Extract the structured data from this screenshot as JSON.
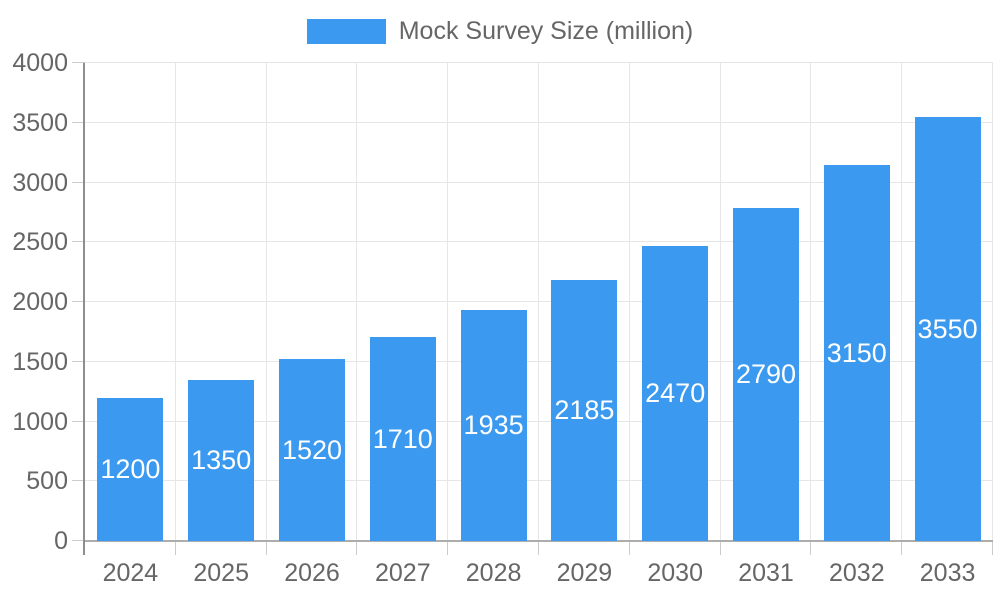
{
  "chart_data": {
    "type": "bar",
    "title": "",
    "legend_label": "Mock Survey Size (million)",
    "legend_position": "top",
    "categories": [
      "2024",
      "2025",
      "2026",
      "2027",
      "2028",
      "2029",
      "2030",
      "2031",
      "2032",
      "2033"
    ],
    "values": [
      1200,
      1350,
      1520,
      1710,
      1935,
      2185,
      2470,
      2790,
      3150,
      3550
    ],
    "bar_value_labels": [
      "1200",
      "1350",
      "1520",
      "1710",
      "1935",
      "2185",
      "2470",
      "2790",
      "3150",
      "3550"
    ],
    "xlabel": "",
    "ylabel": "",
    "ylim": [
      0,
      4000
    ],
    "yticks": [
      0,
      500,
      1000,
      1500,
      2000,
      2500,
      3000,
      3500,
      4000
    ],
    "grid": "on",
    "value_labels_inside_bars": true,
    "colors": {
      "bar": "#3B9AEF",
      "bar_value_label": "#FFFFFF",
      "axis_text": "#666666",
      "legend_text": "#666666",
      "gridline": "#E6E6E6",
      "tick": "#CCCCCC",
      "y_axis_line": "#8E8E8E",
      "x_axis_line": "#ADADAD",
      "background": "#FFFFFF"
    }
  }
}
